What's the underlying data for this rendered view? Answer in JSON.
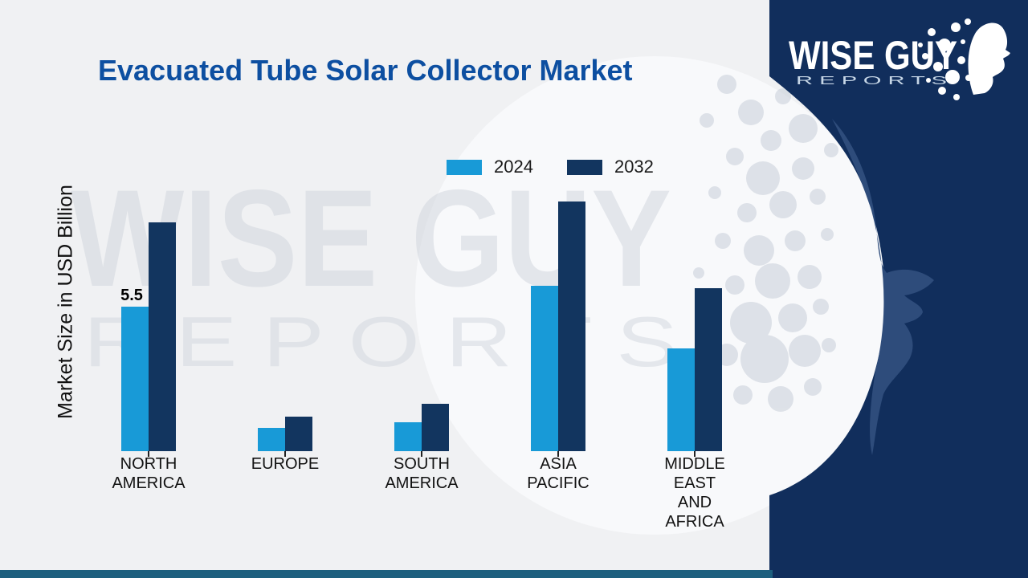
{
  "title": "Evacuated Tube Solar Collector Market",
  "y_axis_label": "Market Size in USD Billion",
  "legend": [
    {
      "label": "2024",
      "color": "#189AD7"
    },
    {
      "label": "2032",
      "color": "#12355F"
    }
  ],
  "logo": {
    "line1": "WISE GUY",
    "line2": "R E P O R T S"
  },
  "watermark": {
    "line1": "WISE GUY",
    "line2": "R E P O R T S"
  },
  "colors": {
    "background": "#F0F1F3",
    "title": "#0D4FA1",
    "bar_2024": "#189AD7",
    "bar_2032": "#12355F",
    "panel_navy": "#112E5C",
    "panel_face": "#2E4C7B",
    "circle_light": "#F8F9FB",
    "watermark_gray": "#D2D7DE",
    "bottom_bar": "#1D5F7E",
    "logo_subtext": "#C6D6E6"
  },
  "chart_data": {
    "type": "bar",
    "categories": [
      "NORTH AMERICA",
      "EUROPE",
      "SOUTH AMERICA",
      "ASIA PACIFIC",
      "MIDDLE EAST AND AFRICA"
    ],
    "category_lines": [
      [
        "NORTH",
        "AMERICA"
      ],
      [
        "EUROPE"
      ],
      [
        "SOUTH",
        "AMERICA"
      ],
      [
        "ASIA",
        "PACIFIC"
      ],
      [
        "MIDDLE",
        "EAST",
        "AND",
        "AFRICA"
      ]
    ],
    "series": [
      {
        "name": "2024",
        "color": "#189AD7",
        "values": [
          5.5,
          0.9,
          1.1,
          6.3,
          3.9
        ]
      },
      {
        "name": "2032",
        "color": "#12355F",
        "values": [
          8.7,
          1.3,
          1.8,
          9.5,
          6.2
        ]
      }
    ],
    "ylabel": "Market Size in USD Billion",
    "ylim": [
      0,
      10
    ],
    "grid": false,
    "legend_position": "top-center",
    "data_labels": [
      {
        "series": "2024",
        "category": "NORTH AMERICA",
        "text": "5.5"
      }
    ]
  }
}
